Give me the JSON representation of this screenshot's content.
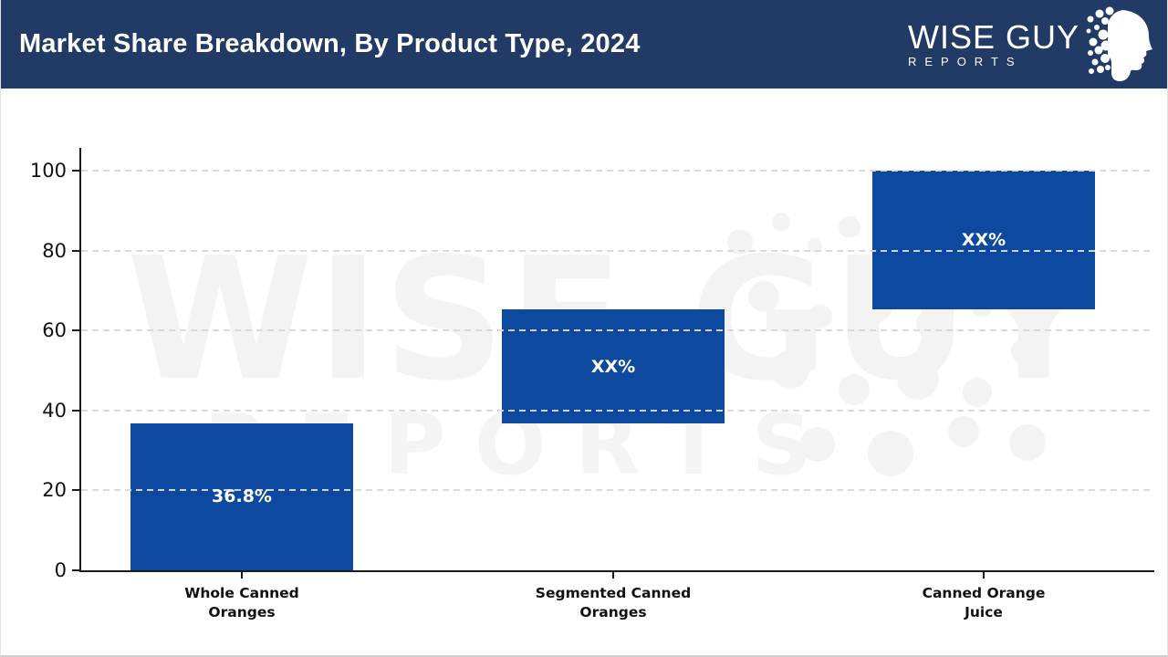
{
  "header": {
    "title": "Market Share Breakdown, By Product Type, 2024",
    "bg_color": "#213a66",
    "logo": {
      "line1": "WISE GUY",
      "line2": "REPORTS"
    }
  },
  "watermark": {
    "line1": "WISE GUY",
    "line2": "REPORTS"
  },
  "chart_data": {
    "type": "bar",
    "subtype": "waterfall",
    "title": "Market Share Breakdown, By Product Type, 2024",
    "categories": [
      "Whole Canned Oranges",
      "Segmented Canned Oranges",
      "Canned Orange Juice"
    ],
    "bars": [
      {
        "category": "Whole Canned Oranges",
        "tick_label": "Whole Canned\nOranges",
        "start": 0,
        "end": 36.8,
        "label": "36.8%"
      },
      {
        "category": "Segmented Canned Oranges",
        "tick_label": "Segmented Canned\nOranges",
        "start": 36.8,
        "end": 65.2,
        "label": "XX%"
      },
      {
        "category": "Canned Orange Juice",
        "tick_label": "Canned Orange\nJuice",
        "start": 65.2,
        "end": 100,
        "label": "XX%"
      }
    ],
    "ylim": [
      0,
      100
    ],
    "yticks": [
      0,
      20,
      40,
      60,
      80,
      100
    ],
    "grid": "dashed-horizontal",
    "bar_color": "#0d4a9f",
    "axis_color": "#1a1a1a"
  }
}
